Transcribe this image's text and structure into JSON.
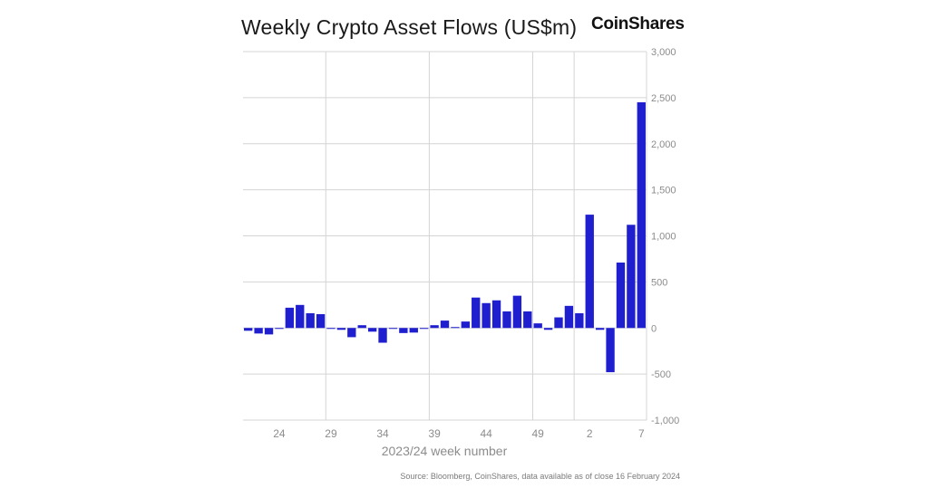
{
  "header": {
    "title": "Weekly Crypto Asset Flows (US$m)",
    "brand": "CoinShares"
  },
  "footer": {
    "source": "Source: Bloomberg, CoinShares, data available as of close 16 February 2024"
  },
  "colors": {
    "bar": "#1f1fd0",
    "grid": "#d4d4d4",
    "tick_text": "#8c8c8c",
    "axis_label": "#8c8c8c"
  },
  "chart_data": {
    "type": "bar",
    "xlabel": "2023/24 week number",
    "ylabel": "",
    "ylim": [
      -1000,
      3000
    ],
    "yticks": [
      3000,
      2500,
      2000,
      1500,
      1000,
      500,
      0,
      -500,
      -1000
    ],
    "ytick_labels": [
      "3,000",
      "2,500",
      "2,000",
      "1,500",
      "1,000",
      "500",
      "0",
      "-500",
      "-1,000"
    ],
    "y_axis_side": "right",
    "grid": true,
    "categories": [
      "21",
      "22",
      "23",
      "24",
      "25",
      "26",
      "27",
      "28",
      "29",
      "30",
      "31",
      "32",
      "33",
      "34",
      "35",
      "36",
      "37",
      "38",
      "39",
      "40",
      "41",
      "42",
      "43",
      "44",
      "45",
      "46",
      "47",
      "48",
      "49",
      "50",
      "51",
      "52",
      "1",
      "2",
      "3",
      "4",
      "5",
      "6",
      "7"
    ],
    "values": [
      -30,
      -60,
      -70,
      -10,
      220,
      250,
      160,
      150,
      0,
      -20,
      -100,
      30,
      -40,
      -160,
      -5,
      -55,
      -50,
      -10,
      30,
      80,
      10,
      70,
      330,
      270,
      300,
      180,
      350,
      180,
      50,
      -20,
      115,
      240,
      160,
      1230,
      -20,
      -480,
      710,
      1120,
      2450
    ],
    "xtick_labels": [
      "24",
      "29",
      "34",
      "39",
      "44",
      "49",
      "2",
      "7"
    ],
    "vertical_gridline_after": [
      "28",
      "38",
      "48"
    ]
  }
}
